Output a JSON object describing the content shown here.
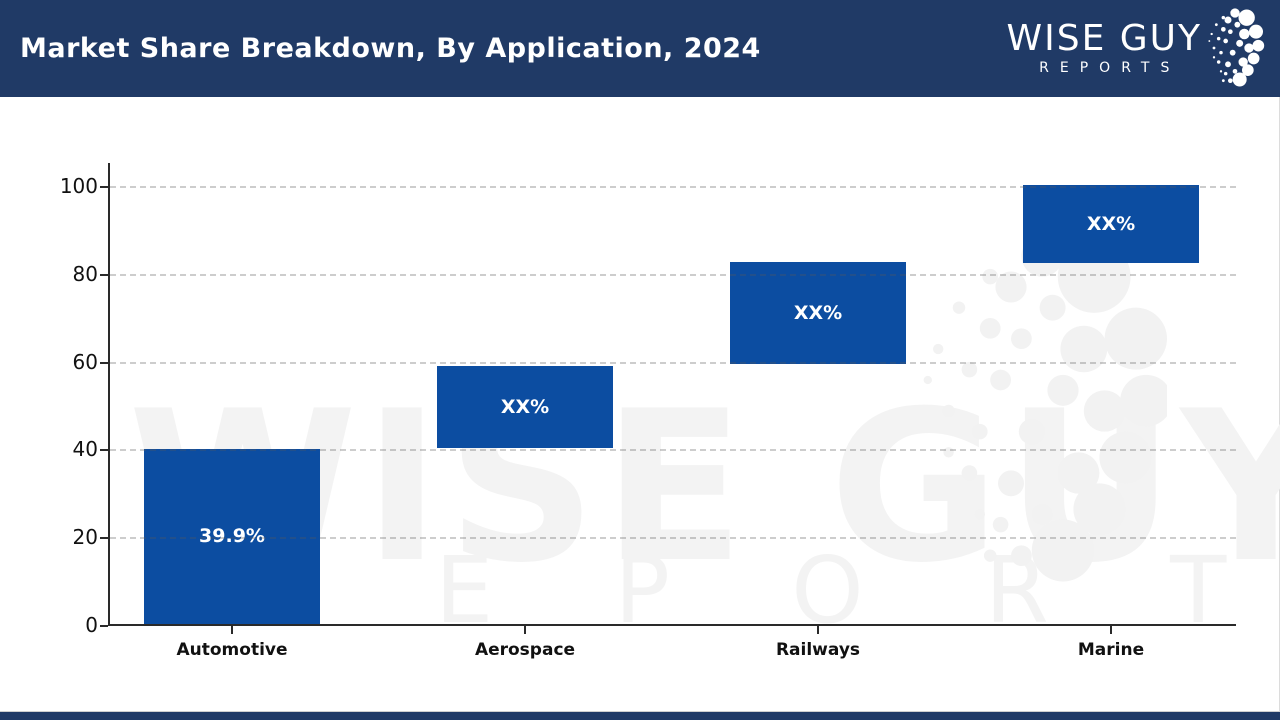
{
  "header": {
    "title": "Market Share Breakdown, By Application, 2024",
    "logo": {
      "line1": "WISE GUY",
      "line2": "REPORTS"
    }
  },
  "watermark": {
    "line1": "WISE GUY",
    "line2": "R E P O R T S"
  },
  "colors": {
    "header_bg": "#203a66",
    "bar_blue": "#0c4da1",
    "bar_label": "#ffffff",
    "watermark_gray": "#f3f3f3"
  },
  "chart_data": {
    "type": "bar",
    "subtype": "waterfall",
    "title": "Market Share Breakdown, By Application, 2024",
    "categories": [
      "Automotive",
      "Aerospace",
      "Railways",
      "Marine"
    ],
    "segments": [
      {
        "category": "Automotive",
        "start": 0,
        "end": 39.9,
        "label": "39.9%"
      },
      {
        "category": "Aerospace",
        "start": 40.1,
        "end": 58.8,
        "label": "XX%"
      },
      {
        "category": "Railways",
        "start": 59.2,
        "end": 82.4,
        "label": "XX%"
      },
      {
        "category": "Marine",
        "start": 82.2,
        "end": 100,
        "label": "XX%"
      }
    ],
    "yticks": [
      0,
      20,
      40,
      60,
      80,
      100
    ],
    "ylim": [
      0,
      105.5
    ],
    "xlabel": "",
    "ylabel": "",
    "grid": "dashed-horizontal",
    "legend": "none",
    "bar_color": "#0c4da1",
    "label_color": "#ffffff"
  }
}
